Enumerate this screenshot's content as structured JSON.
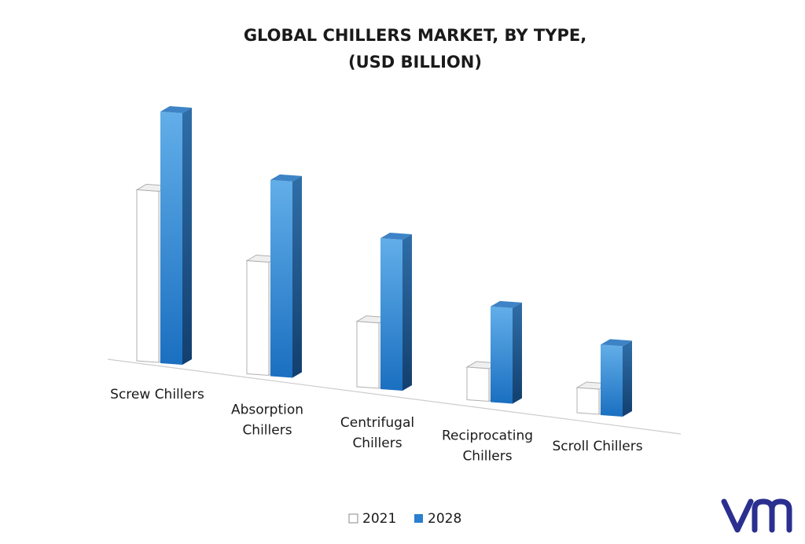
{
  "chart_data": {
    "type": "bar",
    "title_lines": [
      "GLOBAL CHILLERS MARKET, BY TYPE,",
      "(USD BILLION)"
    ],
    "categories": [
      [
        "Screw Chillers"
      ],
      [
        "Absorption",
        "Chillers"
      ],
      [
        "Centrifugal",
        "Chillers"
      ],
      [
        "Reciprocating",
        "Chillers"
      ],
      [
        "Scroll Chillers"
      ]
    ],
    "series": [
      {
        "name": "2021",
        "values": [
          6.8,
          4.5,
          2.6,
          1.3,
          1.0
        ]
      },
      {
        "name": "2028",
        "values": [
          10.0,
          7.8,
          6.0,
          3.8,
          2.8
        ]
      }
    ],
    "ylim": [
      0,
      10
    ],
    "grid": false,
    "legend_position": "bottom-center",
    "colors": {
      "series_2021": "#ffffff",
      "series_2021_edge": "#9a9a9a",
      "series_2028_front_top": "#5aa7e6",
      "series_2028_front_bottom": "#1a6fc0",
      "series_2028_side": "#164f86",
      "series_2028_top": "#4c8fd0",
      "baseline": "#c9c9c9"
    }
  },
  "logo": {
    "text": "vm",
    "color": "#2b2f8f"
  }
}
